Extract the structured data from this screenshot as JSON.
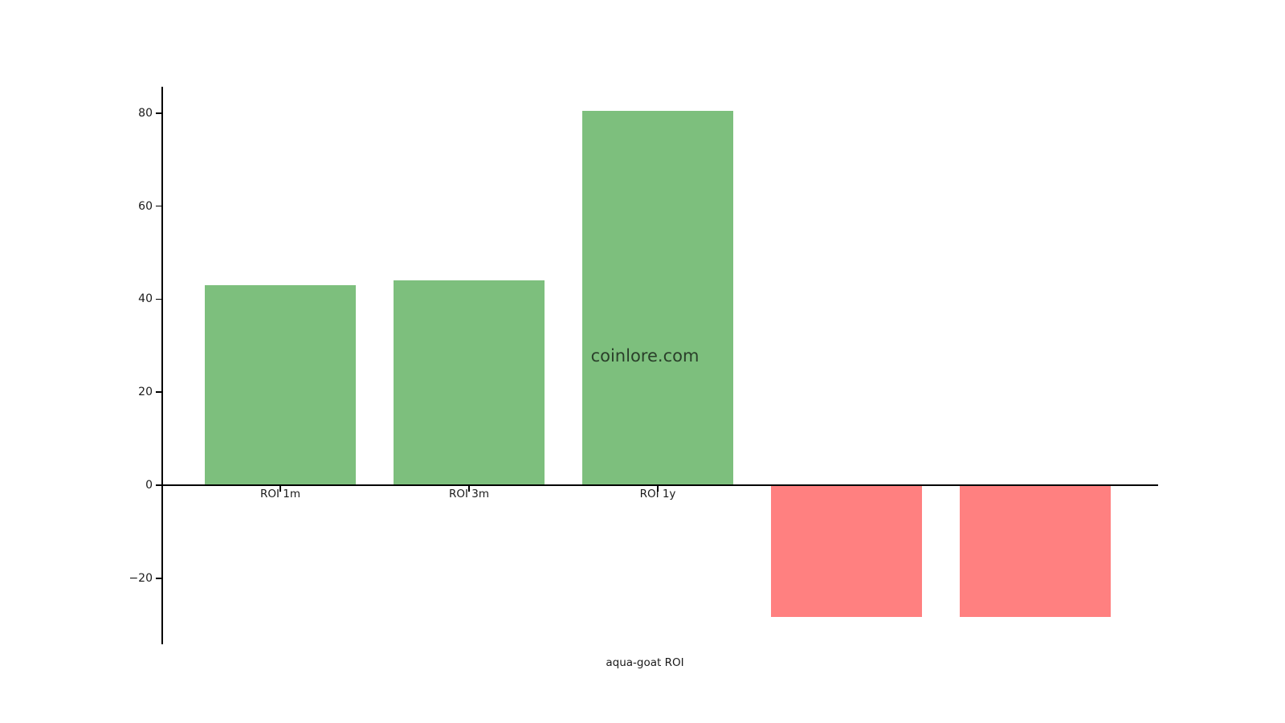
{
  "chart_data": {
    "type": "bar",
    "title": "",
    "xlabel": "aqua-goat ROI",
    "ylabel": "",
    "categories": [
      "ROI 1m",
      "ROI 3m",
      "ROI 1y",
      "",
      ""
    ],
    "values": [
      43,
      44,
      80.5,
      -28.3,
      -28.4
    ],
    "bar_colors": [
      "#7dbf7d",
      "#7dbf7d",
      "#7dbf7d",
      "#ff8080",
      "#ff8080"
    ],
    "positive_color": "#7dbf7d",
    "negative_color": "#ff8080",
    "yticks": [
      80,
      60,
      40,
      20,
      0,
      -20
    ],
    "ytick_labels": [
      "80",
      "60",
      "40",
      "20",
      "0",
      "−20"
    ],
    "ylim": [
      -34,
      86
    ],
    "grid": false,
    "legend": null,
    "watermark": "coinlore.com",
    "axis_color": "#000000",
    "text_color": "#1a1a1a"
  }
}
